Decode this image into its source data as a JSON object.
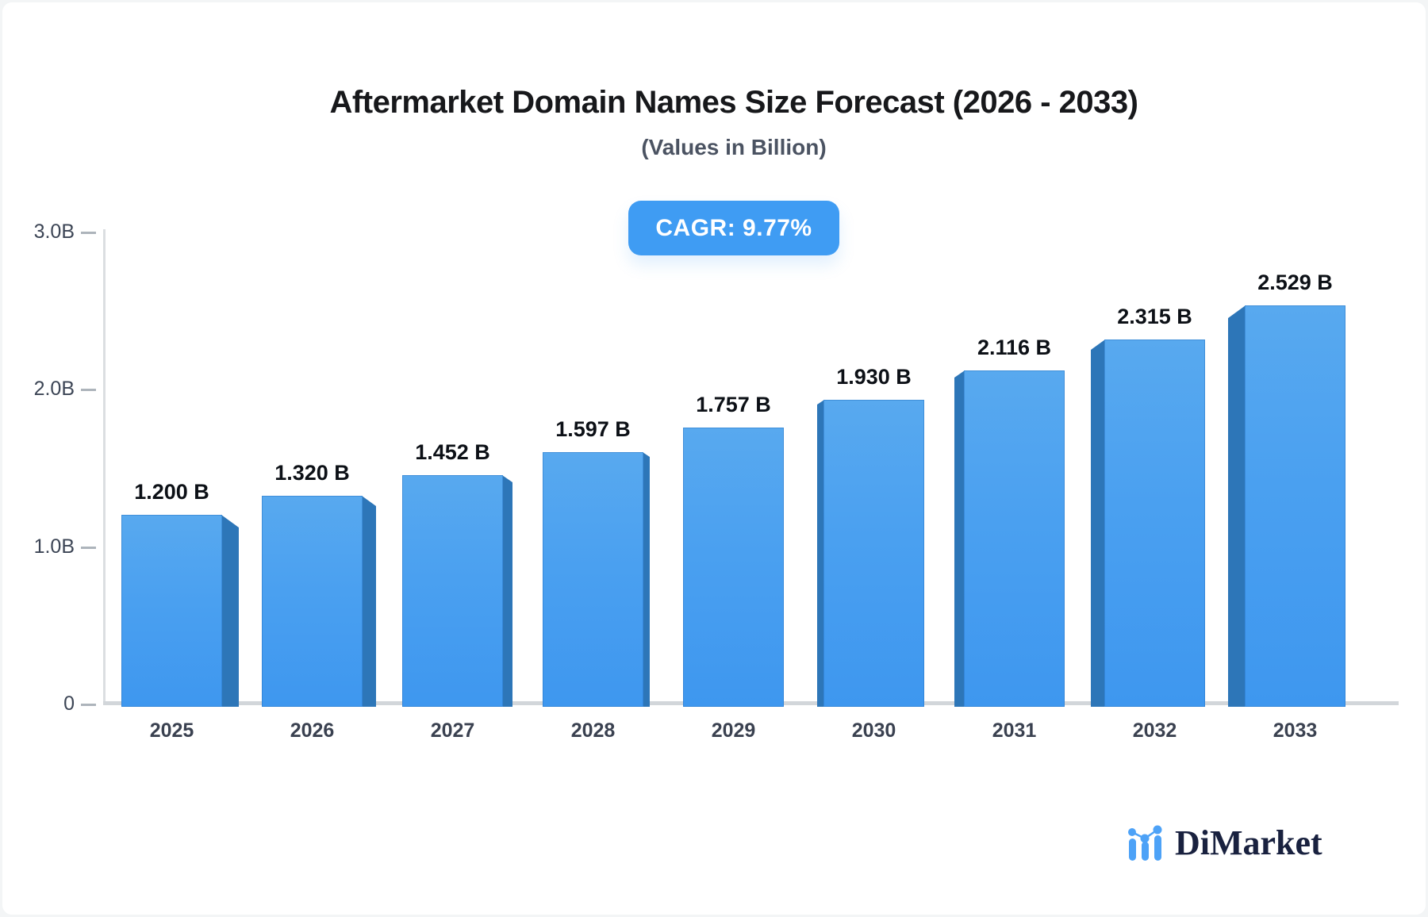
{
  "header": {
    "title": "Aftermarket Domain Names Size Forecast (2026 - 2033)",
    "subtitle": "(Values in Billion)",
    "cagr_label": "CAGR: 9.77%"
  },
  "chart_data": {
    "type": "bar",
    "title": "Aftermarket Domain Names Size Forecast (2026 - 2033)",
    "subtitle": "(Values in Billion)",
    "unit": "Billion",
    "categories": [
      "2025",
      "2026",
      "2027",
      "2028",
      "2029",
      "2030",
      "2031",
      "2032",
      "2033"
    ],
    "values": [
      1.2,
      1.32,
      1.452,
      1.597,
      1.757,
      1.93,
      2.116,
      2.315,
      2.529
    ],
    "value_labels": [
      "1.200 B",
      "1.320 B",
      "1.452 B",
      "1.597 B",
      "1.757 B",
      "1.930 B",
      "2.116 B",
      "2.315 B",
      "2.529 B"
    ],
    "cagr": "9.77%",
    "ylim": [
      0,
      3
    ],
    "yticks": [
      {
        "value": 0,
        "label": "0"
      },
      {
        "value": 1.0,
        "label": "1.0B"
      },
      {
        "value": 2.0,
        "label": "2.0B"
      },
      {
        "value": 3.0,
        "label": "3.0B"
      }
    ],
    "grid": false,
    "legend": "none",
    "style": "3d-bars-center-perspective"
  },
  "colors": {
    "bar_top": "#58a9ef",
    "bar_bottom": "#3e97ef",
    "bar_side": "#2d76b8",
    "badge_bg": "#3f9cf3",
    "badge_text": "#ffffff",
    "axis": "#d2d6da",
    "tick_label": "#3c4555",
    "value_label": "#0c1016",
    "logo_navy": "#19213f",
    "logo_blue": "#4da2f7"
  },
  "branding": {
    "logo_text": "DiMarket"
  }
}
